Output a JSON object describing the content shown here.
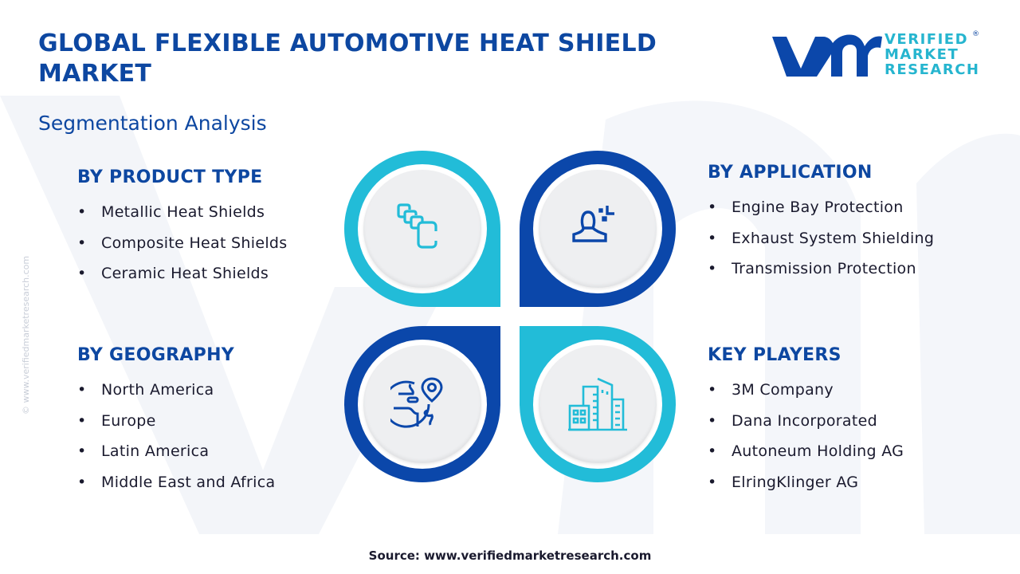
{
  "header": {
    "title": "GLOBAL FLEXIBLE AUTOMOTIVE HEAT SHIELD MARKET",
    "subtitle": "Segmentation Analysis"
  },
  "logo": {
    "line1": "VERIFIED",
    "line2": "MARKET",
    "line3": "RESEARCH",
    "registered": "®"
  },
  "side_watermark": "© www.verifiedmarketresearch.com",
  "colors": {
    "primary": "#0b47aa",
    "accent": "#22bcd8",
    "inner": "#eeeff1"
  },
  "segments": {
    "product_type": {
      "heading": "BY PRODUCT TYPE",
      "icon": "layers-icon",
      "items": [
        "Metallic Heat Shields",
        "Composite Heat Shields",
        "Ceramic Heat Shields"
      ]
    },
    "application": {
      "heading": "BY APPLICATION",
      "icon": "user-icon",
      "items": [
        "Engine Bay Protection",
        "Exhaust System Shielding",
        "Transmission Protection"
      ]
    },
    "geography": {
      "heading": "BY GEOGRAPHY",
      "icon": "globe-pin-icon",
      "items": [
        "North America",
        "Europe",
        "Latin America",
        "Middle East and Africa"
      ]
    },
    "key_players": {
      "heading": "KEY PLAYERS",
      "icon": "buildings-icon",
      "items": [
        "3M Company",
        "Dana Incorporated",
        "Autoneum Holding AG",
        "ElringKlinger AG"
      ]
    }
  },
  "footer": {
    "source": "Source: www.verifiedmarketresearch.com"
  }
}
